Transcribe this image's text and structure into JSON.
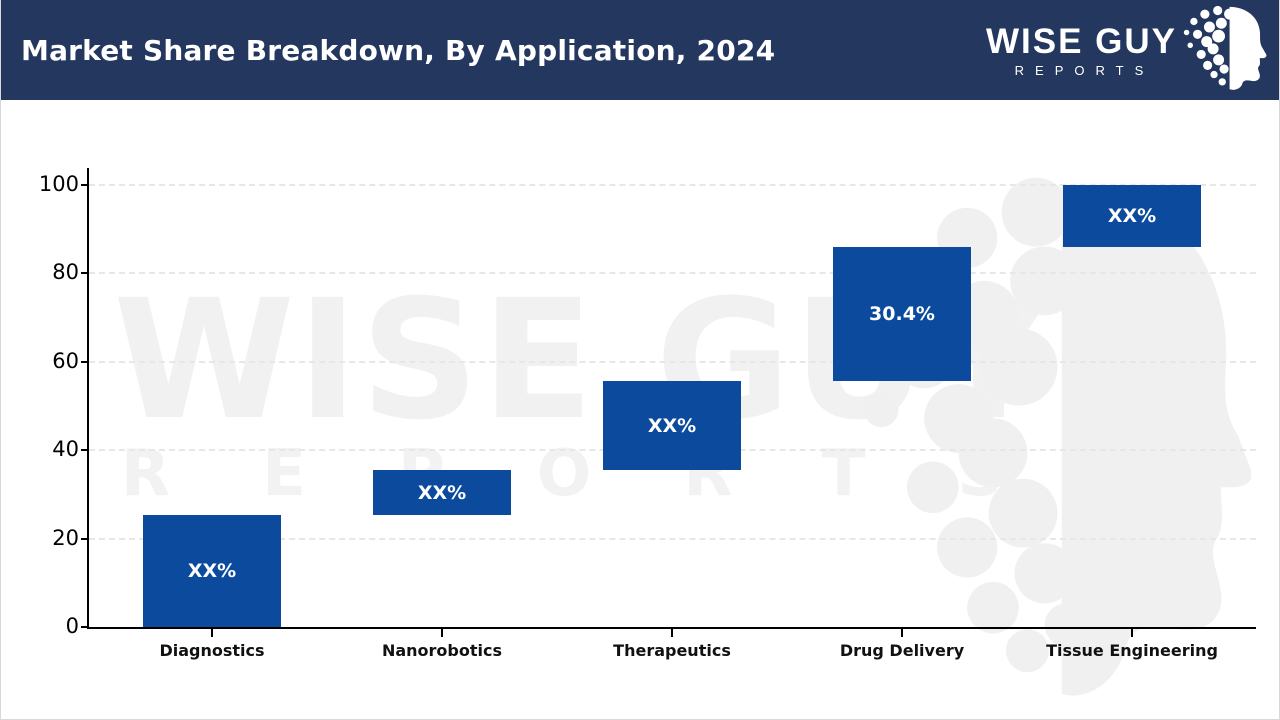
{
  "header": {
    "title": "Market Share Breakdown, By Application, 2024",
    "bg_color": "#23375F",
    "logo": {
      "line1": "WISE GUY",
      "line2": "REPORTS"
    }
  },
  "watermark": {
    "line1": "WISE GUY",
    "line2": "REPORTS",
    "color": "#F1F1F1"
  },
  "chart_data": {
    "type": "bar",
    "subtype": "waterfall-floating-bars",
    "title": "Market Share Breakdown, By Application, 2024",
    "categories": [
      "Diagnostics",
      "Nanorobotics",
      "Therapeutics",
      "Drug Delivery",
      "Tissue Engineering"
    ],
    "segments": [
      {
        "category": "Diagnostics",
        "start": 0,
        "end": 25.3,
        "height_pct": 25.3,
        "label": "XX%"
      },
      {
        "category": "Nanorobotics",
        "start": 25.3,
        "end": 35.5,
        "height_pct": 10.2,
        "label": "XX%"
      },
      {
        "category": "Therapeutics",
        "start": 35.5,
        "end": 55.6,
        "height_pct": 20.1,
        "label": "XX%"
      },
      {
        "category": "Drug Delivery",
        "start": 55.6,
        "end": 86.0,
        "height_pct": 30.4,
        "label": "30.4%"
      },
      {
        "category": "Tissue Engineering",
        "start": 86.0,
        "end": 100.0,
        "height_pct": 14.0,
        "label": "XX%"
      }
    ],
    "y_ticks": [
      0,
      20,
      40,
      60,
      80,
      100
    ],
    "ylim": [
      0,
      105
    ],
    "xlabel": "",
    "ylabel": "",
    "legend": "none",
    "grid": "horizontal-dashed",
    "bar_color": "#0B4A9C",
    "grid_color": "#E7E7E7",
    "axis_color": "#000000"
  }
}
